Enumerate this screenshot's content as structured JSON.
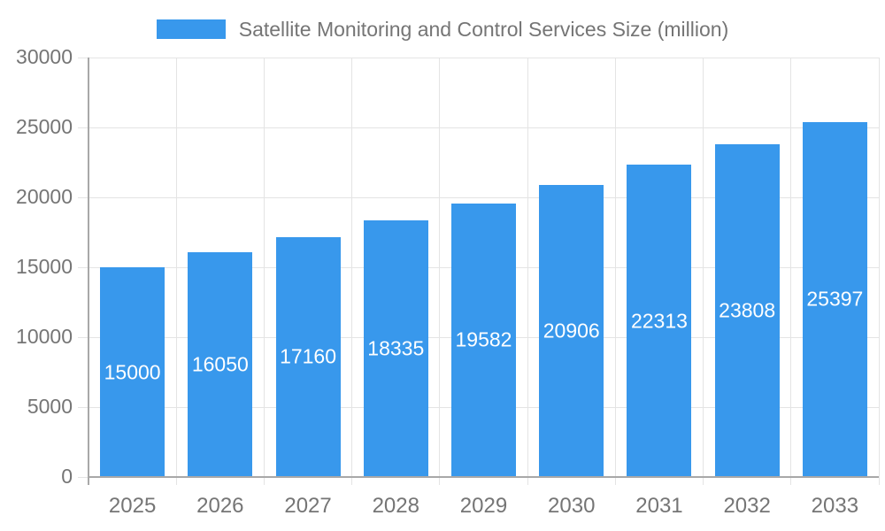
{
  "legend": {
    "label": "Satellite Monitoring and Control Services Size (million)"
  },
  "chart_data": {
    "type": "bar",
    "title": "Satellite Monitoring and Control Services Size (million)",
    "categories": [
      "2025",
      "2026",
      "2027",
      "2028",
      "2029",
      "2030",
      "2031",
      "2032",
      "2033"
    ],
    "series": [
      {
        "name": "Satellite Monitoring and Control Services Size (million)",
        "values": [
          15000,
          16050,
          17160,
          18335,
          19582,
          20906,
          22313,
          23808,
          25397
        ]
      }
    ],
    "value_labels": [
      "15000",
      "16050",
      "17160",
      "18335",
      "19582",
      "20906",
      "22313",
      "23808",
      "25397"
    ],
    "xlabel": "",
    "ylabel": "",
    "ylim": [
      0,
      30000
    ],
    "yticks": [
      0,
      5000,
      10000,
      15000,
      20000,
      25000,
      30000
    ],
    "grid": "horizontal and vertical, light, behind bars",
    "legend_position": "top-center",
    "colors": {
      "bar": "#3898EC",
      "gridline": "#E4E4E4",
      "axis_line": "#A8A8A8",
      "tick_text": "#757575",
      "value_label_text": "#FFFFFF",
      "background": "#FFFFFF"
    }
  }
}
